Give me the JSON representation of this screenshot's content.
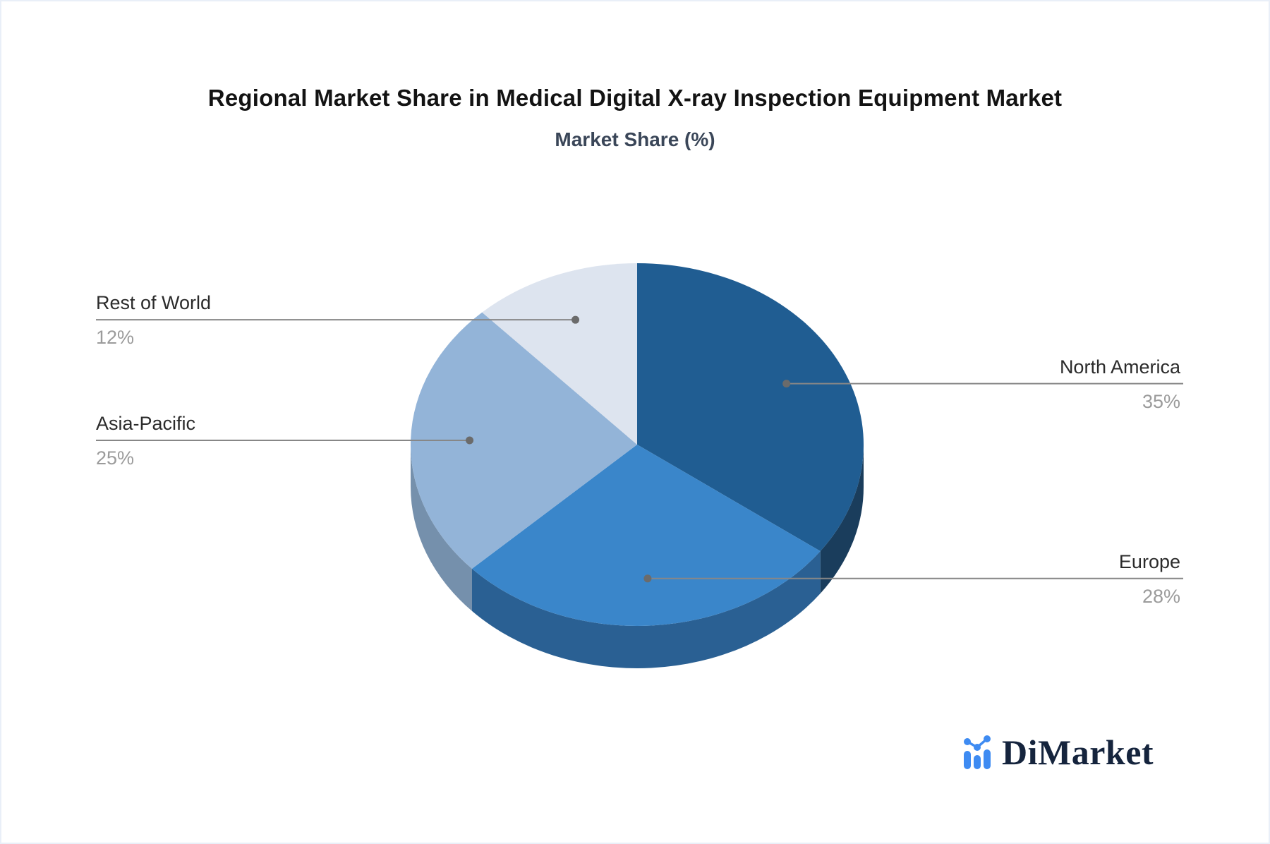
{
  "page": {
    "background": "#ffffff",
    "border_color": "#e9eff8"
  },
  "chart_data": {
    "type": "pie",
    "title": "Regional Market Share in Medical Digital X-ray Inspection Equipment Market",
    "subtitle": "Market Share (%)",
    "unit": "%",
    "start_angle": "12-o-clock",
    "direction": "clockwise",
    "style": "3d-pie",
    "legend_position": "none",
    "categories": [
      "North America",
      "Europe",
      "Asia-Pacific",
      "Rest of World"
    ],
    "values": [
      35,
      28,
      25,
      12
    ],
    "slices": [
      {
        "label": "North America",
        "value": 35,
        "display_value": "35%",
        "color": "#205d92",
        "side_color": "#1a3d5c"
      },
      {
        "label": "Europe",
        "value": 28,
        "display_value": "28%",
        "color": "#3a86ca",
        "side_color": "#2a6093"
      },
      {
        "label": "Asia-Pacific",
        "value": 25,
        "display_value": "25%",
        "color": "#93b4d8",
        "side_color": "#7590ac"
      },
      {
        "label": "Rest of World",
        "value": 12,
        "display_value": "12%",
        "color": "#dde4ef",
        "side_color": "#c3ccd9"
      }
    ],
    "leader": {
      "line_color": "#878787",
      "dot_color": "#6b6b6b"
    },
    "label_text_color": "#2b2b2b",
    "value_text_color": "#9b9b9b"
  },
  "logo": {
    "text": "DiMarket",
    "text_color": "#15243d",
    "icon_color": "#3e8bf2",
    "icon": "mini-bar-chart-icon"
  }
}
